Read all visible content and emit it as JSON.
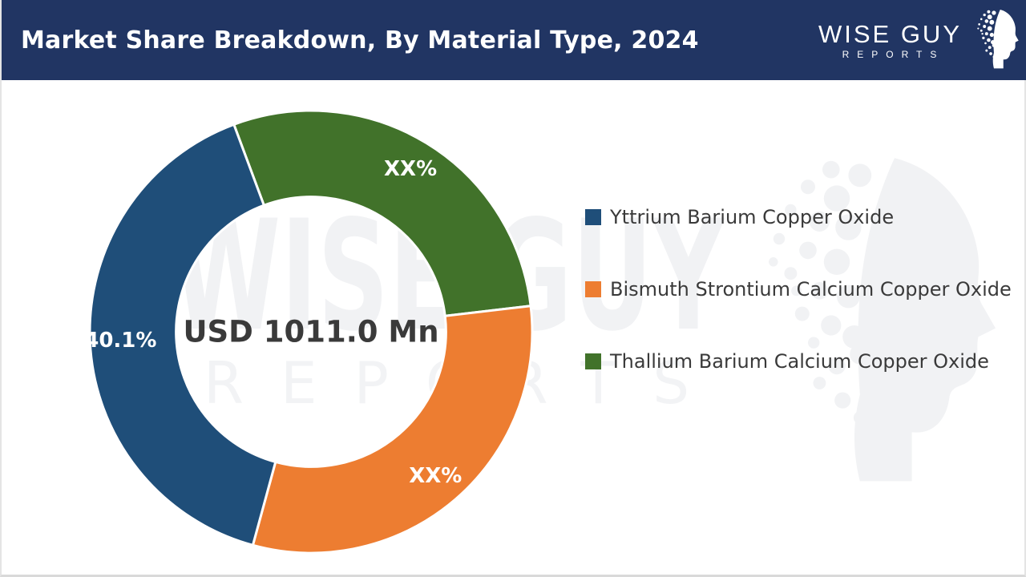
{
  "header": {
    "title": "Market Share Breakdown, By Material Type, 2024",
    "bg_color": "#213563",
    "logo": {
      "line1": "WISE GUY",
      "line2": "REPORTS"
    }
  },
  "watermark": {
    "line1": "WISE GUY",
    "line2": "REPORTS"
  },
  "chart_data": {
    "type": "pie",
    "variant": "donut",
    "title": "Market Share Breakdown, By Material Type, 2024",
    "center_label": "USD 1011.0 Mn",
    "start_angle_deg": -20.4,
    "direction": "clockwise",
    "inner_radius_ratio": 0.61,
    "segments": [
      {
        "name": "Thallium Barium Calcium Copper Oxide",
        "value_pct": 28.8,
        "slice_label": "XX%",
        "color": "#41722A"
      },
      {
        "name": "Bismuth Strontium Calcium Copper Oxide",
        "value_pct": 31.1,
        "slice_label": "XX%",
        "color": "#ED7D31"
      },
      {
        "name": "Yttrium Barium Copper Oxide",
        "value_pct": 40.1,
        "slice_label": "40.1%",
        "color": "#1F4E79"
      }
    ],
    "legend": [
      {
        "label": "Yttrium Barium Copper Oxide",
        "color": "#1F4E79"
      },
      {
        "label": "Bismuth Strontium Calcium Copper Oxide",
        "color": "#ED7D31"
      },
      {
        "label": "Thallium Barium Calcium Copper Oxide",
        "color": "#41722A"
      }
    ],
    "legend_position": "right",
    "colors": {
      "header_bg": "#213563",
      "text": "#3a3a3a",
      "watermark": "#f1f2f4",
      "border": "#d9d9d9"
    }
  }
}
